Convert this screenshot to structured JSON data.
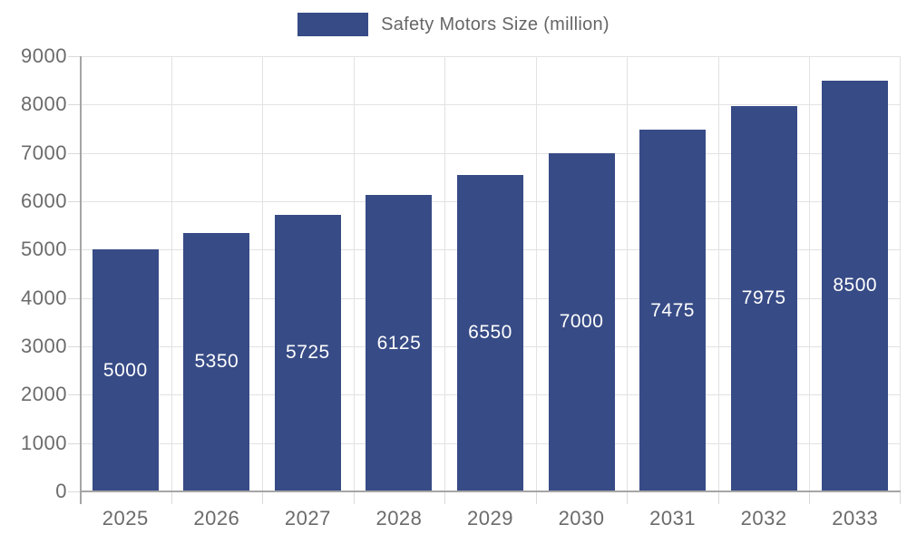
{
  "legend": {
    "label": "Safety Motors Size (million)"
  },
  "chart_data": {
    "type": "bar",
    "title": "Safety Motors Size (million)",
    "series_name": "Safety Motors Size (million)",
    "categories": [
      "2025",
      "2026",
      "2027",
      "2028",
      "2029",
      "2030",
      "2031",
      "2032",
      "2033"
    ],
    "values": [
      5000,
      5350,
      5725,
      6125,
      6550,
      7000,
      7475,
      7975,
      8500
    ],
    "yticks": [
      0,
      1000,
      2000,
      3000,
      4000,
      5000,
      6000,
      7000,
      8000,
      9000
    ],
    "ylim": [
      0,
      9000
    ],
    "xlabel": "",
    "ylabel": "",
    "grid": true,
    "legend_position": "top",
    "value_labels": "centered-inside-bars",
    "colors": {
      "bar": "#374b86",
      "grid": "#e2e2e2",
      "axis": "#a5a5a5",
      "tick_mark": "#d9d9d9",
      "tick_text": "#6b6b6b",
      "value_label": "#ffffff",
      "legend_text": "#666666",
      "background": "#ffffff"
    }
  }
}
